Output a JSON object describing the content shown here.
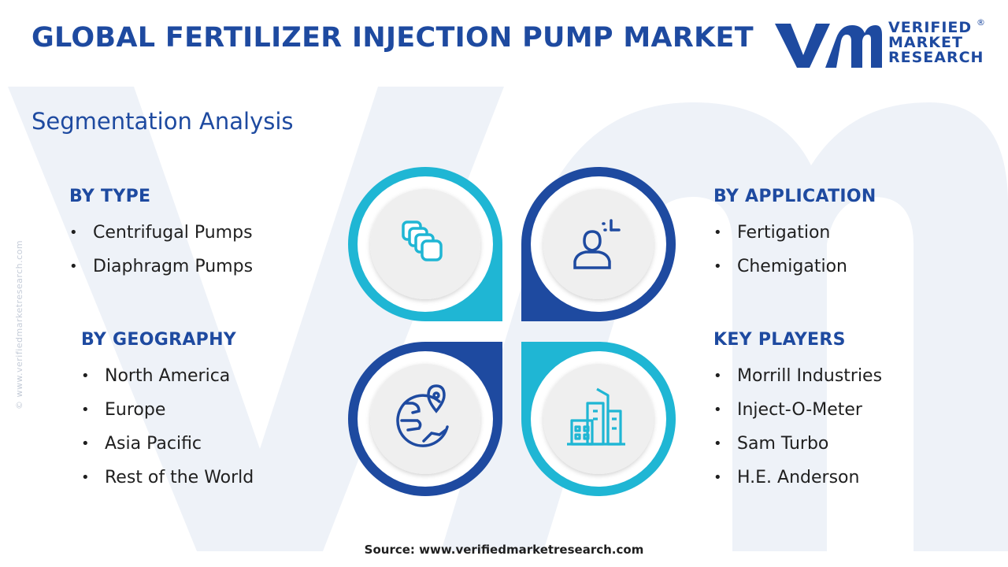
{
  "header": {
    "title": "GLOBAL FERTILIZER INJECTION PUMP MARKET",
    "subtitle": "Segmentation Analysis"
  },
  "logo": {
    "line1": "VERIFIED",
    "line2": "MARKET",
    "line3": "RESEARCH",
    "registered": "®"
  },
  "side_credit": "© www.verifiedmarketresearch.com",
  "segments": {
    "type": {
      "heading": "BY TYPE",
      "items": [
        "Centrifugal Pumps",
        "Diaphragm Pumps"
      ]
    },
    "geography": {
      "heading": "BY GEOGRAPHY",
      "items": [
        "North America",
        "Europe",
        "Asia Pacific",
        "Rest of the World"
      ]
    },
    "application": {
      "heading": "BY APPLICATION",
      "items": [
        "Fertigation",
        "Chemigation"
      ]
    },
    "players": {
      "heading": "KEY PLAYERS",
      "items": [
        "Morrill Industries",
        "Inject-O-Meter",
        "Sam Turbo",
        "H.E. Anderson"
      ]
    }
  },
  "icons": {
    "top_left": "stacked-cards-icon",
    "top_right": "person-target-icon",
    "bottom_left": "globe-location-icon",
    "bottom_right": "buildings-icon"
  },
  "colors": {
    "dark_blue": "#1e4aa0",
    "light_cyan": "#1fb6d4",
    "petal_inner": "#efefef",
    "watermark": "#eef2f8"
  },
  "footer": {
    "source": "Source: www.verifiedmarketresearch.com"
  }
}
